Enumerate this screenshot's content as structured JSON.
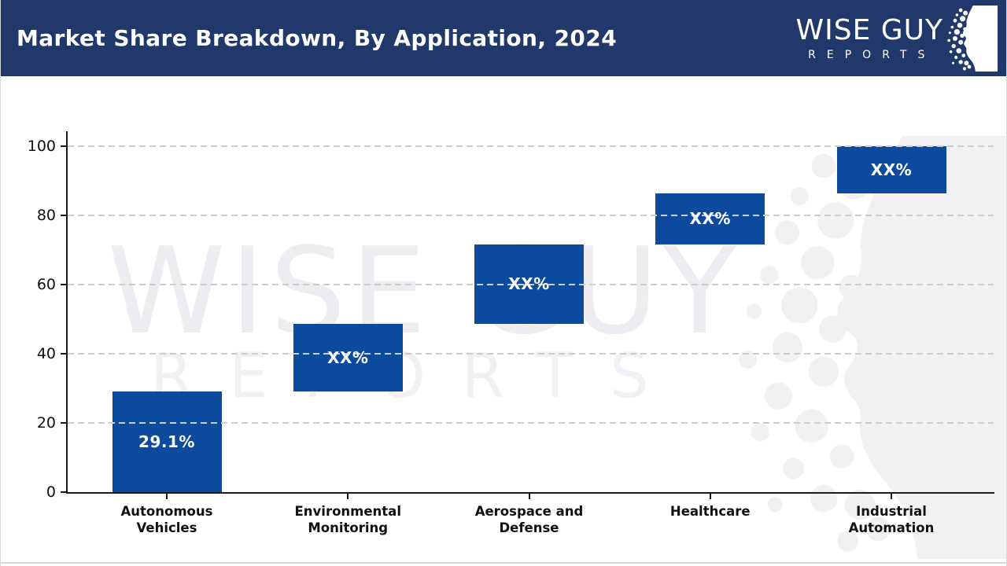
{
  "header": {
    "title": "Market Share Breakdown, By Application, 2024",
    "bg_color": "#21396a",
    "logo": {
      "line1": "WISE GUY",
      "line2": "REPORTS"
    }
  },
  "watermark": {
    "line1": "WISE GUY",
    "line2": "REPORTS"
  },
  "chart_data": {
    "type": "bar",
    "variant": "waterfall",
    "title": "Market Share Breakdown, By Application, 2024",
    "categories": [
      "Autonomous Vehicles",
      "Environmental Monitoring",
      "Aerospace and Defense",
      "Healthcare",
      "Industrial Automation"
    ],
    "categories_lines": [
      [
        "Autonomous",
        "Vehicles"
      ],
      [
        "Environmental",
        "Monitoring"
      ],
      [
        "Aerospace and",
        "Defense"
      ],
      [
        "Healthcare"
      ],
      [
        "Industrial",
        "Automation"
      ]
    ],
    "segments": [
      {
        "category": "Autonomous Vehicles",
        "label": "29.1%",
        "start": 0,
        "end": 29.1
      },
      {
        "category": "Environmental Monitoring",
        "label": "XX%",
        "start": 29.1,
        "end": 48.6
      },
      {
        "category": "Aerospace and Defense",
        "label": "XX%",
        "start": 48.6,
        "end": 71.7
      },
      {
        "category": "Healthcare",
        "label": "XX%",
        "start": 71.7,
        "end": 86.4
      },
      {
        "category": "Industrial Automation",
        "label": "XX%",
        "start": 86.4,
        "end": 100
      }
    ],
    "yticks": [
      0,
      20,
      40,
      60,
      80,
      100
    ],
    "ylim": [
      0,
      104
    ],
    "xlabel": "",
    "ylabel": "",
    "grid": "horizontal-dashed",
    "legend": "none",
    "bar_color": "#0c4a9e",
    "bar_label_color": "#ffffff",
    "axis_color": "#1a1a1a",
    "gridline_color": "#cdcdcd"
  }
}
